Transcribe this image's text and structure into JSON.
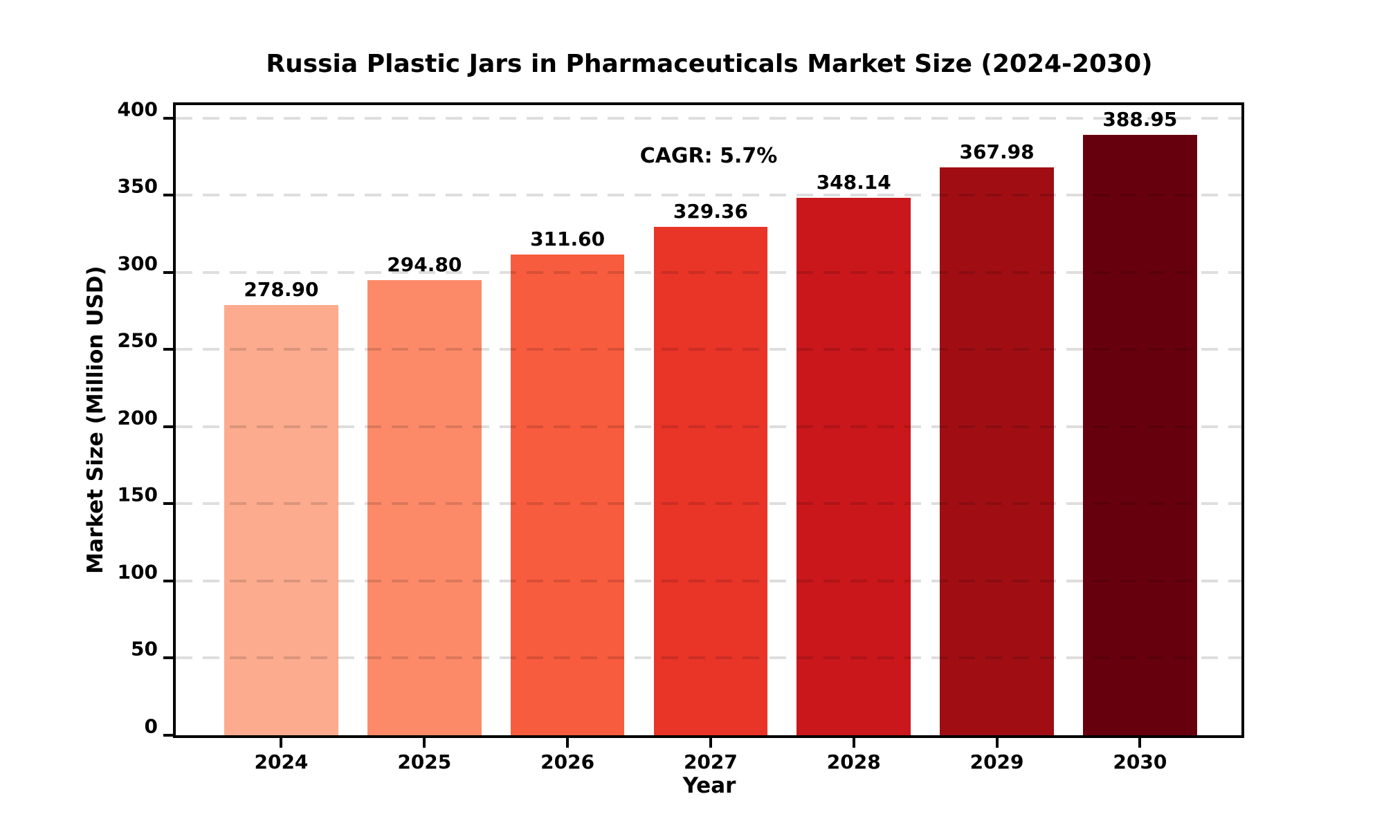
{
  "chart_data": {
    "type": "bar",
    "title": "Russia Plastic Jars in Pharmaceuticals Market Size (2024-2030)",
    "xlabel": "Year",
    "ylabel": "Market Size (Million USD)",
    "annotation": "CAGR: 5.7%",
    "categories": [
      "2024",
      "2025",
      "2026",
      "2027",
      "2028",
      "2029",
      "2030"
    ],
    "values": [
      278.9,
      294.8,
      311.6,
      329.36,
      348.14,
      367.98,
      388.95
    ],
    "value_labels": [
      "278.90",
      "294.80",
      "311.60",
      "329.36",
      "348.14",
      "367.98",
      "388.95"
    ],
    "bar_colors": [
      "#FCAB8F",
      "#FC8A69",
      "#F85C3E",
      "#E93428",
      "#C9171C",
      "#A00E14",
      "#67000D"
    ],
    "ylim": [
      0,
      408.4
    ],
    "yticks": [
      0,
      50,
      100,
      150,
      200,
      250,
      300,
      350,
      400
    ],
    "grid": "horizontal-dashed",
    "grid_color": "#dddddd",
    "legend": null,
    "background_color": "#ffffff",
    "text_color": "#000000"
  }
}
